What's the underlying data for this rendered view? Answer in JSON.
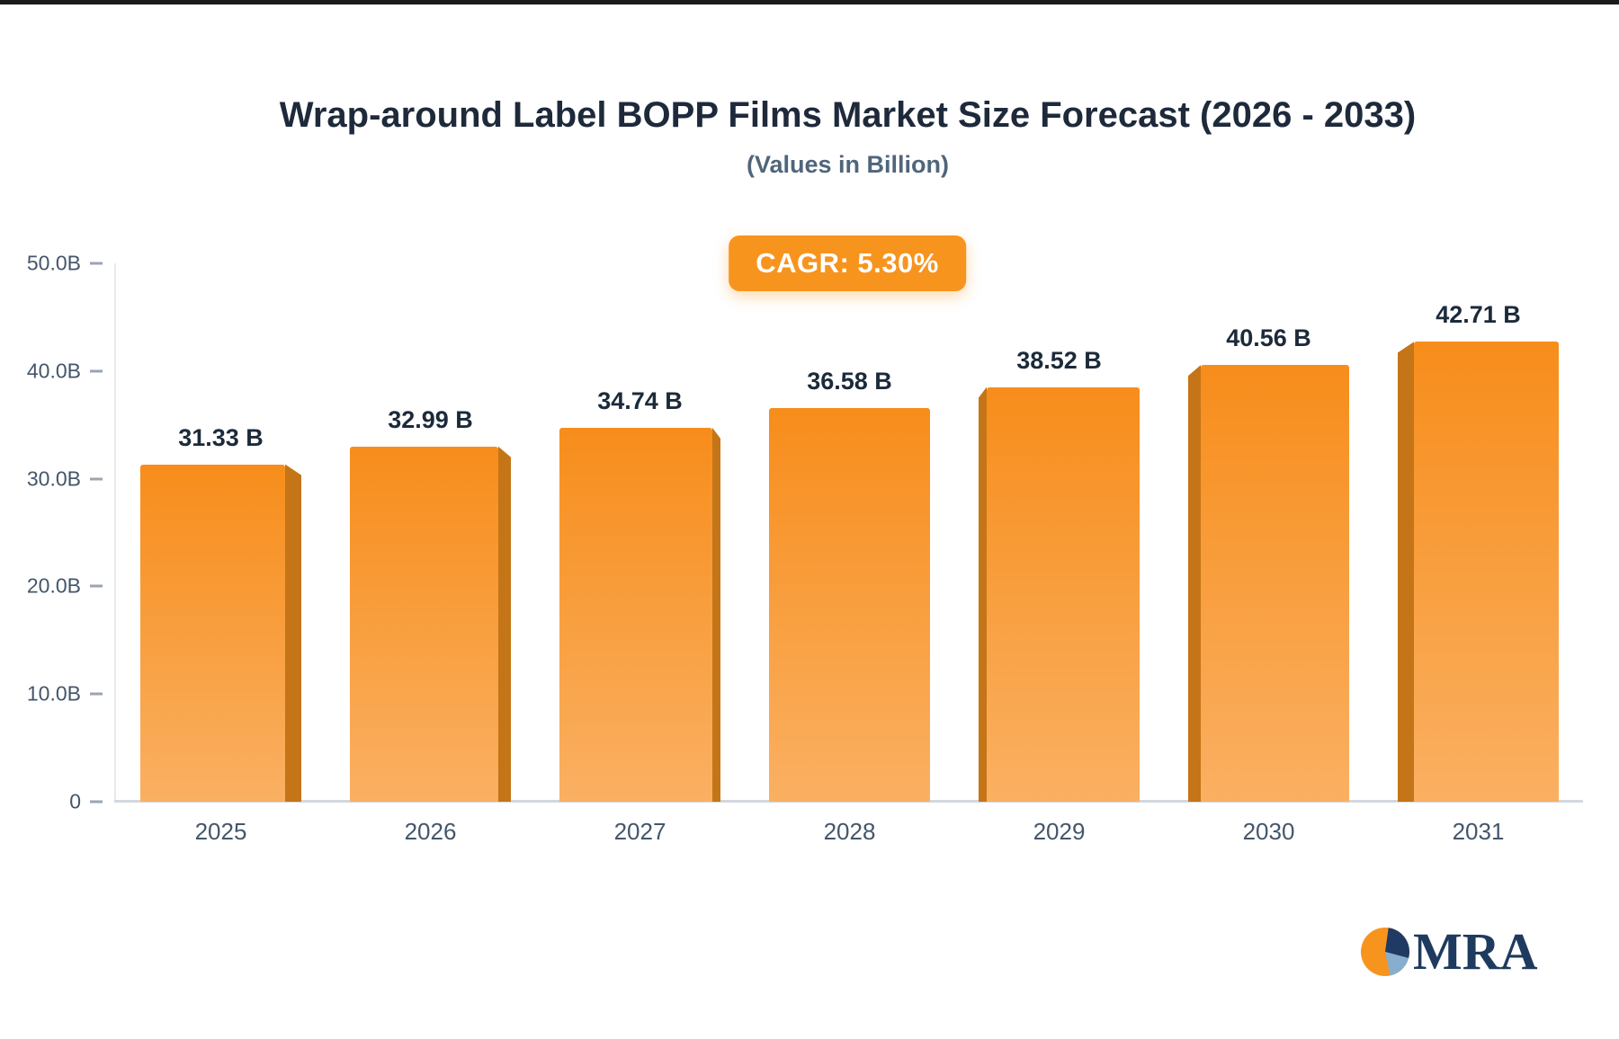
{
  "chart_data": {
    "type": "bar",
    "title": "Wrap-around Label BOPP Films Market Size Forecast (2026 - 2033)",
    "subtitle": "(Values in Billion)",
    "cagr_label": "CAGR: 5.30%",
    "categories": [
      "2025",
      "2026",
      "2027",
      "2028",
      "2029",
      "2030",
      "2031"
    ],
    "values": [
      31.33,
      32.99,
      34.74,
      36.58,
      38.52,
      40.56,
      42.71
    ],
    "value_labels": [
      "31.33 B",
      "32.99 B",
      "34.74 B",
      "36.58 B",
      "38.52 B",
      "40.56 B",
      "42.71 B"
    ],
    "xlabel": "",
    "ylabel": "",
    "ylim": [
      0,
      50
    ],
    "y_ticks": [
      {
        "value": 50,
        "label": "50.0B"
      },
      {
        "value": 40,
        "label": "40.0B"
      },
      {
        "value": 30,
        "label": "30.0B"
      },
      {
        "value": 20,
        "label": "20.0B"
      },
      {
        "value": 10,
        "label": "10.0B"
      },
      {
        "value": 0,
        "label": "0"
      }
    ],
    "grid": false,
    "legend": false,
    "colors": {
      "accent": "#F7941E",
      "bar_top": "#F78D1B",
      "bar_bottom": "#FAB062",
      "bar_side": "#C47517",
      "axis_line": "#D3D8DE",
      "title_text": "#1E2A3B",
      "subtitle_text": "#50657B",
      "tick_text": "#44566B",
      "badge_text": "#FFFFFF",
      "logo_navy": "#1E3A5F",
      "logo_blue": "#86AECE"
    }
  },
  "logo": {
    "text": "MRA"
  }
}
